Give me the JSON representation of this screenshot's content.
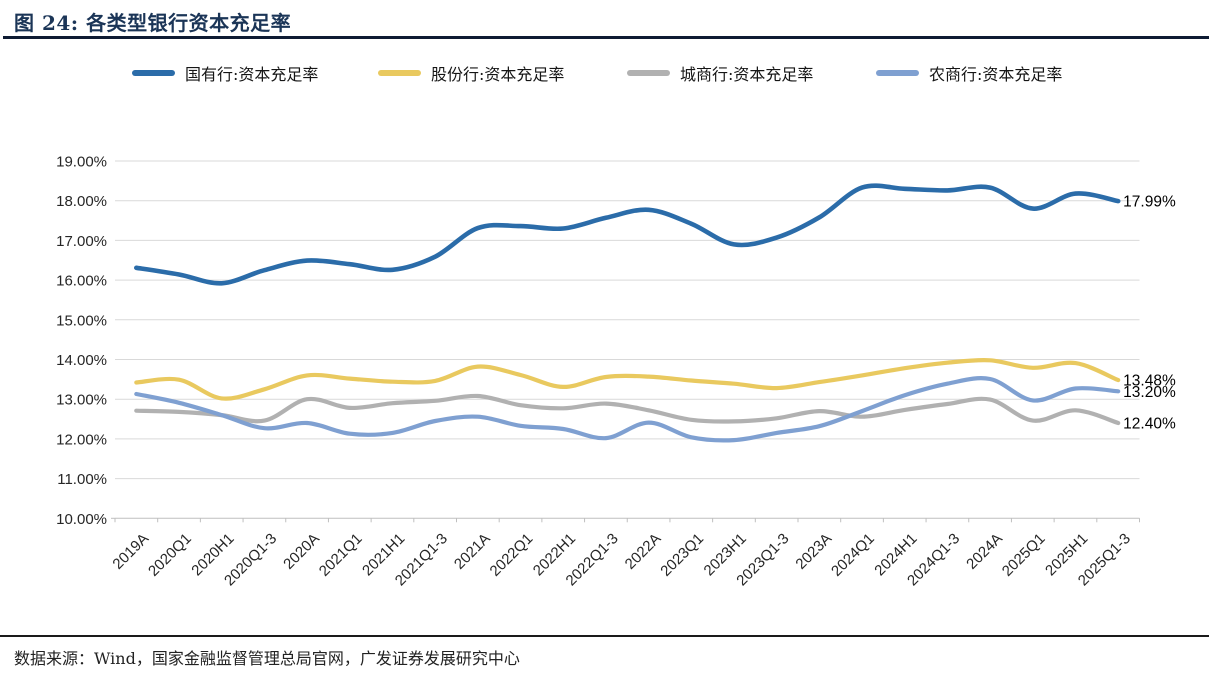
{
  "figure": {
    "title": "图 24: 各类型银行资本充足率",
    "source": "数据来源：Wind，国家金融监督管理总局官网，广发证券发展研究中心"
  },
  "chart_data": {
    "type": "line",
    "smooth": true,
    "title": "各类型银行资本充足率",
    "xlabel": "",
    "ylabel": "",
    "legend_position": "top",
    "gridlines": true,
    "grid_color": "#D9D9D9",
    "axis_color": "#BFBFBF",
    "tick_label_color": "#262626",
    "end_label_color": "#000000",
    "ylim": [
      10,
      19
    ],
    "categories": [
      "2019A",
      "2020Q1",
      "2020H1",
      "2020Q1-3",
      "2020A",
      "2021Q1",
      "2021H1",
      "2021Q1-3",
      "2021A",
      "2022Q1",
      "2022H1",
      "2022Q1-3",
      "2022A",
      "2023Q1",
      "2023H1",
      "2023Q1-3",
      "2023A",
      "2024Q1",
      "2024H1",
      "2024Q1-3",
      "2024A",
      "2025Q1",
      "2025H1",
      "2025Q1-3"
    ],
    "y_axis": {
      "min": 10,
      "max": 19,
      "step": 1,
      "tick_labels": [
        "19.00%",
        "18.00%",
        "17.00%",
        "16.00%",
        "15.00%",
        "14.00%",
        "13.00%",
        "12.00%",
        "11.00%",
        "10.00%"
      ]
    },
    "series": [
      {
        "name": "国有行:资本充足率",
        "color": "#2B6CA9",
        "width": 4.6,
        "end_label": "17.99%",
        "values": [
          16.31,
          16.14,
          15.92,
          16.25,
          16.49,
          16.4,
          16.26,
          16.59,
          17.31,
          17.36,
          17.3,
          17.57,
          17.77,
          17.42,
          16.9,
          17.07,
          17.58,
          18.33,
          18.3,
          18.26,
          18.33,
          17.8,
          18.18,
          17.99
        ]
      },
      {
        "name": "股份行:资本充足率",
        "color": "#E9C95F",
        "width": 4.2,
        "end_label": "13.48%",
        "values": [
          13.42,
          13.49,
          13.02,
          13.25,
          13.6,
          13.52,
          13.44,
          13.46,
          13.82,
          13.61,
          13.31,
          13.56,
          13.57,
          13.47,
          13.39,
          13.28,
          13.43,
          13.6,
          13.78,
          13.92,
          13.98,
          13.79,
          13.91,
          13.48
        ]
      },
      {
        "name": "城商行:资本充足率",
        "color": "#B1B1B1",
        "width": 4.2,
        "end_label": "12.40%",
        "values": [
          12.71,
          12.68,
          12.6,
          12.46,
          13.0,
          12.78,
          12.9,
          12.96,
          13.08,
          12.85,
          12.77,
          12.89,
          12.72,
          12.48,
          12.44,
          12.52,
          12.7,
          12.56,
          12.73,
          12.88,
          12.99,
          12.46,
          12.72,
          12.4
        ]
      },
      {
        "name": "农商行:资本充足率",
        "color": "#7FA0D1",
        "width": 4.2,
        "end_label": "13.20%",
        "values": [
          13.13,
          12.91,
          12.6,
          12.27,
          12.4,
          12.13,
          12.15,
          12.45,
          12.56,
          12.33,
          12.25,
          12.02,
          12.41,
          12.04,
          11.97,
          12.15,
          12.32,
          12.7,
          13.1,
          13.39,
          13.51,
          12.97,
          13.27,
          13.2
        ]
      }
    ]
  }
}
